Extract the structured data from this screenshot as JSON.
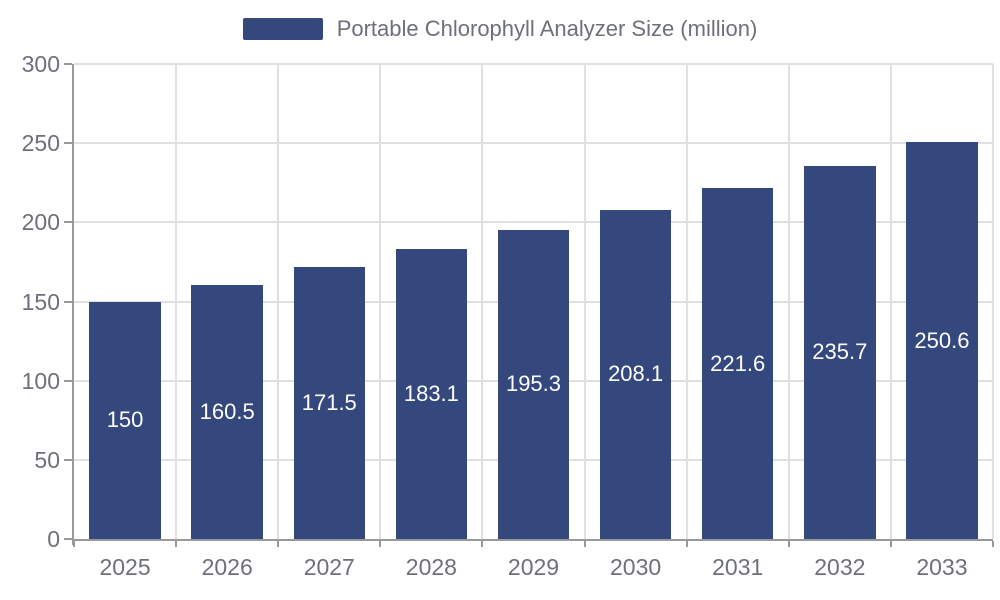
{
  "legend": {
    "series_label": "Portable Chlorophyll Analyzer Size (million)"
  },
  "colors": {
    "bar": "#35487E",
    "grid": "#e0e0e0",
    "axis": "#999999",
    "text": "#6e7079",
    "bar_label": "#ffffff",
    "background": "#ffffff"
  },
  "chart_data": {
    "type": "bar",
    "title": "Portable Chlorophyll Analyzer Size (million)",
    "categories": [
      "2025",
      "2026",
      "2027",
      "2028",
      "2029",
      "2030",
      "2031",
      "2032",
      "2033"
    ],
    "values": [
      150,
      160.5,
      171.5,
      183.1,
      195.3,
      208.1,
      221.6,
      235.7,
      250.6
    ],
    "value_labels": [
      "150",
      "160.5",
      "171.5",
      "183.1",
      "195.3",
      "208.1",
      "221.6",
      "235.7",
      "250.6"
    ],
    "xlabel": "",
    "ylabel": "",
    "ylim": [
      0,
      300
    ],
    "yticks": [
      0,
      50,
      100,
      150,
      200,
      250,
      300
    ],
    "grid": true,
    "legend_position": "top"
  }
}
